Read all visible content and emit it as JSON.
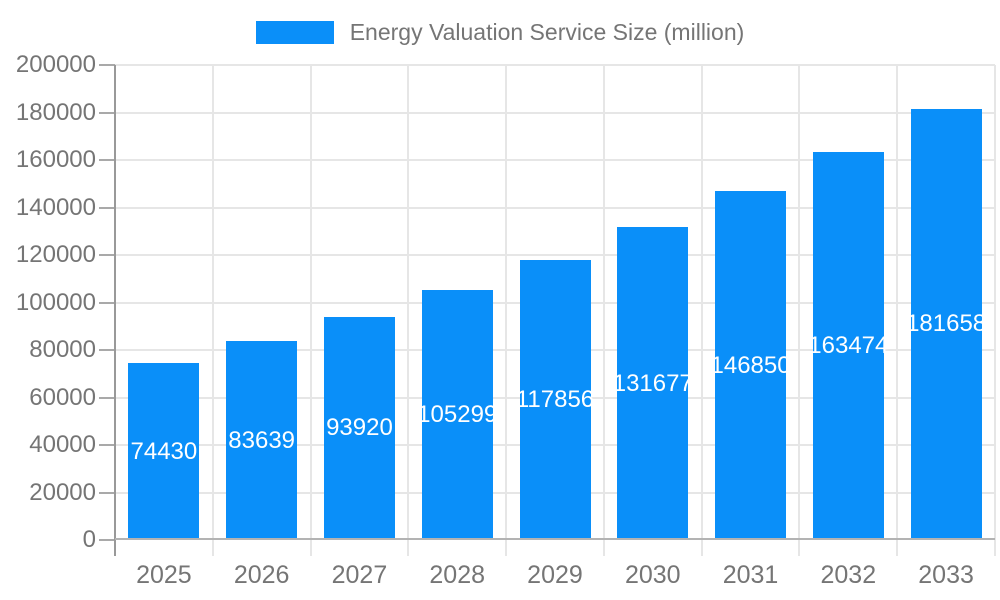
{
  "chart_data": {
    "type": "bar",
    "title": "Energy Valuation Service Size (million)",
    "legend": [
      "Energy Valuation Service Size (million)"
    ],
    "legend_position": "top-center",
    "categories": [
      "2025",
      "2026",
      "2027",
      "2028",
      "2029",
      "2030",
      "2031",
      "2032",
      "2033"
    ],
    "series": [
      {
        "name": "Energy Valuation Service Size (million)",
        "values": [
          74430,
          83639,
          93920,
          105299,
          117856,
          131677,
          146850,
          163474,
          181658
        ]
      }
    ],
    "data_labels_shown": true,
    "xlabel": "",
    "ylabel": "",
    "ylim": [
      0,
      200000
    ],
    "y_tick_step": 20000,
    "y_ticks": [
      0,
      20000,
      40000,
      60000,
      80000,
      100000,
      120000,
      140000,
      160000,
      180000,
      200000
    ],
    "grid": true,
    "colors": {
      "bar": "#0a8ff9",
      "bar_label_text": "#ffffff",
      "axis_text": "#757575",
      "grid_line": "#e6e6e6",
      "axis_line": "#a6a6a6",
      "background": "#ffffff"
    }
  }
}
